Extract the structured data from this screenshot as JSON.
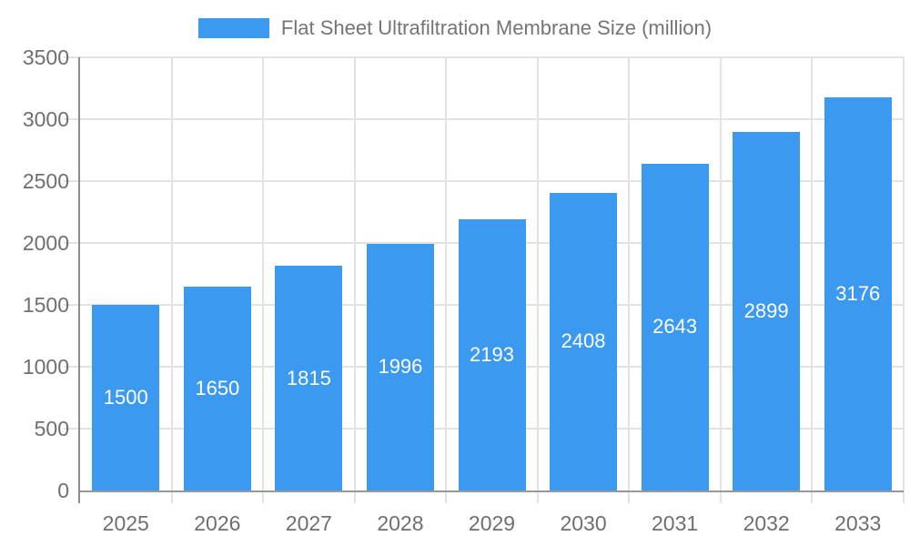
{
  "chart_data": {
    "type": "bar",
    "title": "Flat Sheet Ultrafiltration Membrane Size (million)",
    "categories": [
      "2025",
      "2026",
      "2027",
      "2028",
      "2029",
      "2030",
      "2031",
      "2032",
      "2033"
    ],
    "values": [
      1500,
      1650,
      1815,
      1996,
      2193,
      2408,
      2643,
      2899,
      3176
    ],
    "xlabel": "",
    "ylabel": "",
    "ylim": [
      0,
      3500
    ],
    "yticks": [
      0,
      500,
      1000,
      1500,
      2000,
      2500,
      3000,
      3500
    ],
    "grid": true,
    "value_labels_shown": true,
    "legend": {
      "position": "top-center",
      "label": "Flat Sheet Ultrafiltration Membrane Size (million)",
      "swatch_color": "#3b99f0"
    },
    "colors": {
      "bar": "#3b99f0",
      "value_label": "#ffffff",
      "axis_label": "#6f6f6f",
      "legend_label": "#757575",
      "gridline": "#e3e3e3",
      "axis_line": "#999999",
      "background": "#ffffff"
    }
  }
}
